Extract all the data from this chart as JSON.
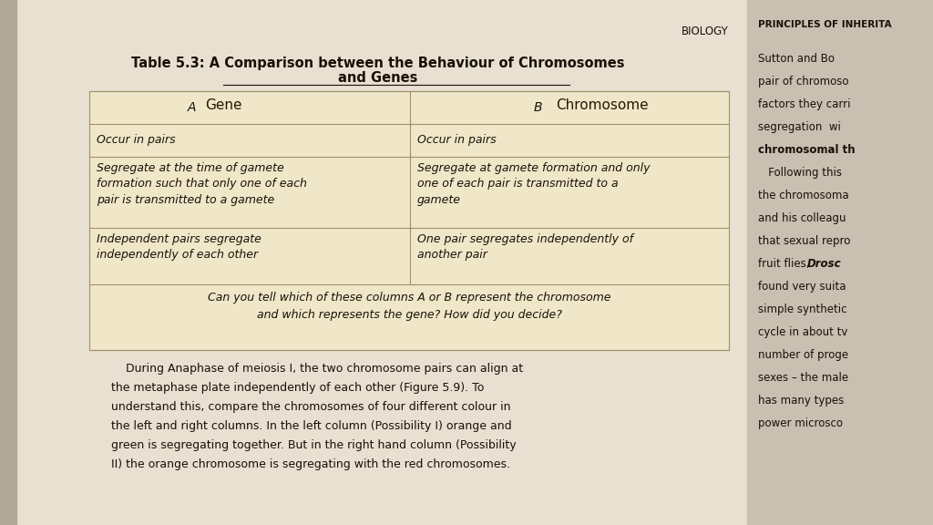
{
  "title_line1": "Table 5.3: A Comparison between the Behaviour of Chromosomes",
  "title_line2": "and Genes",
  "header_A": "A",
  "header_A_handwritten": "Gene",
  "header_B": "B",
  "header_B_handwritten": "Chromosome",
  "rows": [
    {
      "col_A": "Occur in pairs",
      "col_B": "Occur in pairs"
    },
    {
      "col_A": "Segregate at the time of gamete\nformation such that only one of each\npair is transmitted to a gamete",
      "col_B": "Segregate at gamete formation and only\none of each pair is transmitted to a\ngamete"
    },
    {
      "col_A": "Independent pairs segregate\nindependently of each other",
      "col_B": "One pair segregates independently of\nanother pair"
    },
    {
      "col_A": "Can you tell which of these columns A or B represent the chromosome\nand which represents the gene? How did you decide?",
      "col_B": null
    }
  ],
  "right_panel_header": "PRINCIPLES OF INHERITA",
  "right_panel_text": [
    "Sutton and Bo",
    "pair of chromoso",
    "factors they carri",
    "segregation  wi",
    "chromosomal th",
    "   Following this",
    "the chromosoma",
    "and his colleagu",
    "that sexual repro",
    "fruit flies, Drosc",
    "found very suita",
    "simple synthetic",
    "cycle in about tv",
    "number of proge",
    "sexes – the male",
    "has many types",
    "power microsco"
  ],
  "bg_page": "#e8e0d0",
  "bg_table": "#f0e6c8",
  "text_color": "#1a1008",
  "header_text_color": "#1a1008",
  "right_bg": "#c8c0b0",
  "font_size_title": 10.5,
  "font_size_cell": 9,
  "font_size_header": 10,
  "font_size_right": 8.5
}
